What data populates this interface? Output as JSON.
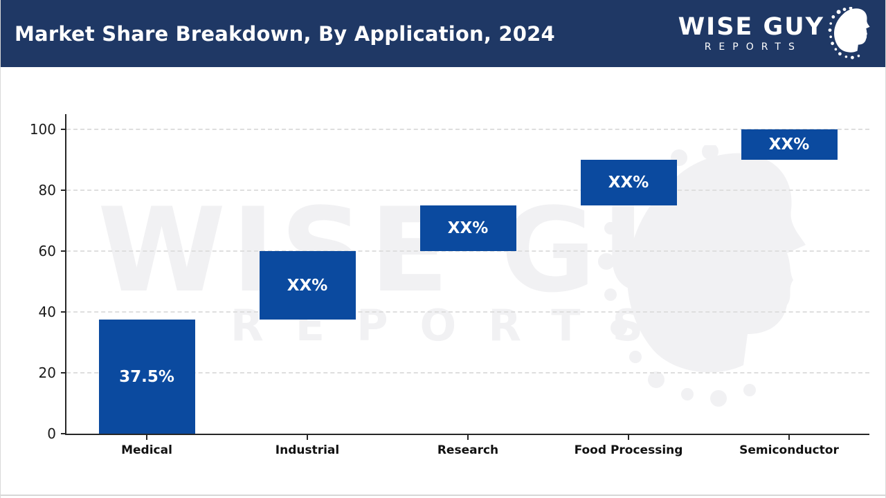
{
  "header": {
    "title": "Market Share Breakdown, By Application, 2024",
    "bg_color": "#1F3865",
    "logo": {
      "line1": "WISE GUY",
      "line2": "REPORTS",
      "icon": "dotted-face-profile"
    }
  },
  "watermark": {
    "line1": "WISE GUY",
    "line2": "REPORTS",
    "icon": "dotted-face-profile"
  },
  "chart_data": {
    "type": "bar",
    "subtype": "waterfall",
    "title": "Market Share Breakdown, By Application, 2024",
    "categories": [
      "Medical",
      "Industrial",
      "Research",
      "Food Processing",
      "Semiconductor"
    ],
    "segments": [
      {
        "category": "Medical",
        "start": 0,
        "end": 37.5,
        "label": "37.5%"
      },
      {
        "category": "Industrial",
        "start": 37.5,
        "end": 60,
        "label": "XX%"
      },
      {
        "category": "Research",
        "start": 60,
        "end": 75,
        "label": "XX%"
      },
      {
        "category": "Food Processing",
        "start": 75,
        "end": 90,
        "label": "XX%"
      },
      {
        "category": "Semiconductor",
        "start": 90,
        "end": 100,
        "label": "XX%"
      }
    ],
    "y_ticks": [
      0,
      20,
      40,
      60,
      80,
      100
    ],
    "ylim": [
      0,
      100
    ],
    "xlabel": "",
    "ylabel": "",
    "grid": "dashed-horizontal",
    "legend": "none",
    "bar_color": "#0B4A9F",
    "bar_label_color": "#FFFFFF",
    "grid_color": "#DEDEDE",
    "axis_color": "#262626"
  }
}
